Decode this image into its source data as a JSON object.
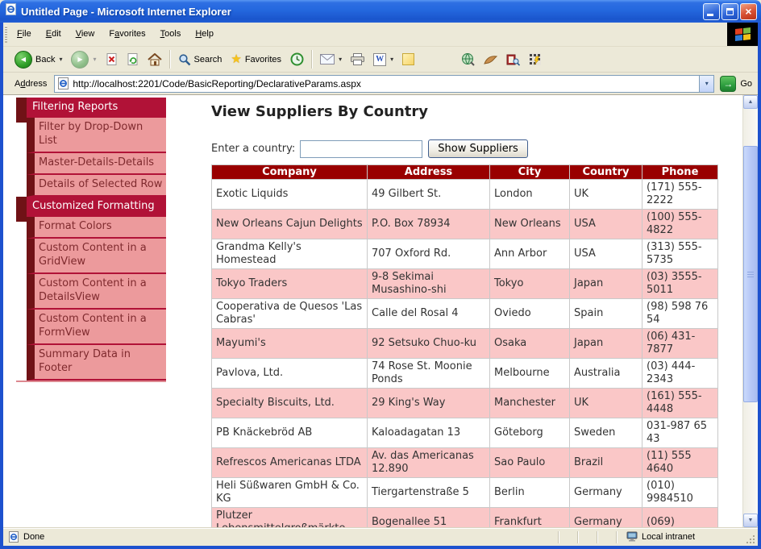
{
  "window": {
    "title": "Untitled Page - Microsoft Internet Explorer",
    "status_left": "Done",
    "status_right": "Local intranet"
  },
  "menu": {
    "items": [
      {
        "label": "File",
        "accel": 0
      },
      {
        "label": "Edit",
        "accel": 0
      },
      {
        "label": "View",
        "accel": 0
      },
      {
        "label": "Favorites",
        "accel": 1
      },
      {
        "label": "Tools",
        "accel": 0
      },
      {
        "label": "Help",
        "accel": 0
      }
    ]
  },
  "toolbar": {
    "back_label": "Back",
    "search_label": "Search",
    "favorites_label": "Favorites"
  },
  "address_bar": {
    "label": "Address",
    "accel": 1,
    "url": "http://localhost:2201/Code/BasicReporting/DeclarativeParams.aspx",
    "go_label": "Go"
  },
  "icons": {
    "back": "◀",
    "forward": "▶",
    "dropdown": "▾",
    "favorites_star": "★",
    "word_glyph": "W",
    "go_arrow": "→",
    "scroll_up": "▲",
    "scroll_down": "▼",
    "close": "×"
  },
  "sidebar": {
    "sections": [
      {
        "title": "Filtering Reports",
        "items": [
          "Filter by Drop-Down List",
          "Master-Details-Details",
          "Details of Selected Row"
        ]
      },
      {
        "title": "Customized Formatting",
        "items": [
          "Format Colors",
          "Custom Content in a GridView",
          "Custom Content in a DetailsView",
          "Custom Content in a FormView",
          "Summary Data in Footer"
        ]
      }
    ]
  },
  "main": {
    "title": "View Suppliers By Country",
    "form": {
      "label": "Enter a country:",
      "input_value": "",
      "button_label": "Show Suppliers"
    },
    "table": {
      "columns": [
        "Company",
        "Address",
        "City",
        "Country",
        "Phone"
      ],
      "rows": [
        [
          "Exotic Liquids",
          "49 Gilbert St.",
          "London",
          "UK",
          "(171) 555-2222"
        ],
        [
          "New Orleans Cajun Delights",
          "P.O. Box 78934",
          "New Orleans",
          "USA",
          "(100) 555-4822"
        ],
        [
          "Grandma Kelly's Homestead",
          "707 Oxford Rd.",
          "Ann Arbor",
          "USA",
          "(313) 555-5735"
        ],
        [
          "Tokyo Traders",
          "9-8 Sekimai Musashino-shi",
          "Tokyo",
          "Japan",
          "(03) 3555-5011"
        ],
        [
          "Cooperativa de Quesos 'Las Cabras'",
          "Calle del Rosal 4",
          "Oviedo",
          "Spain",
          "(98) 598 76 54"
        ],
        [
          "Mayumi's",
          "92 Setsuko Chuo-ku",
          "Osaka",
          "Japan",
          "(06) 431-7877"
        ],
        [
          "Pavlova, Ltd.",
          "74 Rose St. Moonie Ponds",
          "Melbourne",
          "Australia",
          "(03) 444-2343"
        ],
        [
          "Specialty Biscuits, Ltd.",
          "29 King's Way",
          "Manchester",
          "UK",
          "(161) 555-4448"
        ],
        [
          "PB Knäckebröd AB",
          "Kaloadagatan 13",
          "Göteborg",
          "Sweden",
          "031-987 65 43"
        ],
        [
          "Refrescos Americanas LTDA",
          "Av. das Americanas 12.890",
          "Sao Paulo",
          "Brazil",
          "(11) 555 4640"
        ],
        [
          "Heli Süßwaren GmbH & Co. KG",
          "Tiergartenstraße 5",
          "Berlin",
          "Germany",
          "(010) 9984510"
        ],
        [
          "Plutzer Lebensmittelgroßmärkte",
          "Bogenallee 51",
          "Frankfurt",
          "Germany",
          "(069)"
        ]
      ]
    }
  },
  "colors": {
    "titlebar_blue": "#2467DE",
    "window_border": "#1D51CE",
    "chrome_tan": "#ECE9D8",
    "nav_header": "#B11237",
    "nav_block": "#701216",
    "nav_item_bg": "#EC9A9C",
    "nav_item_text": "#7F2A2E",
    "grid_header": "#990000",
    "grid_alt_row": "#FAC7C7"
  }
}
